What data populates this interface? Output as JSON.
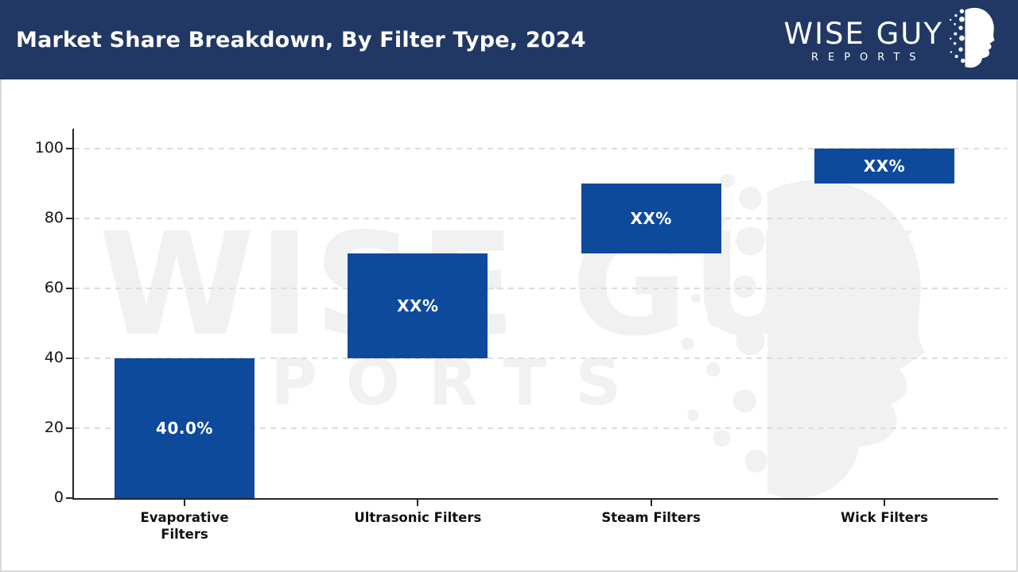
{
  "header": {
    "title": "Market Share Breakdown, By Filter Type, 2024",
    "bg_color": "#213864",
    "logo": {
      "line1": "WISE GUY",
      "line2": "REPORTS"
    }
  },
  "watermark": {
    "line1": "WISE GUY",
    "line2": "REPORTS"
  },
  "chart_data": {
    "type": "bar",
    "subtype": "waterfall",
    "title": "Market Share Breakdown, By Filter Type, 2024",
    "xlabel": "",
    "ylabel": "",
    "ylim": [
      0,
      100
    ],
    "yticks": [
      0,
      20,
      40,
      60,
      80,
      100
    ],
    "grid": "horizontal-dashed",
    "legend": "none",
    "bar_color": "#0d4a9c",
    "bar_label_color": "#ffffff",
    "categories": [
      "Evaporative Filters",
      "Ultrasonic Filters",
      "Steam Filters",
      "Wick Filters"
    ],
    "categories_display": [
      [
        "Evaporative",
        "Filters"
      ],
      [
        "Ultrasonic Filters"
      ],
      [
        "Steam Filters"
      ],
      [
        "Wick Filters"
      ]
    ],
    "bars": [
      {
        "category": "Evaporative Filters",
        "start": 0,
        "end": 40,
        "value": 40,
        "label": "40.0%"
      },
      {
        "category": "Ultrasonic Filters",
        "start": 40,
        "end": 70,
        "value": 30,
        "label": "XX%"
      },
      {
        "category": "Steam Filters",
        "start": 70,
        "end": 90,
        "value": 20,
        "label": "XX%"
      },
      {
        "category": "Wick Filters",
        "start": 90,
        "end": 100,
        "value": 10,
        "label": "XX%"
      }
    ]
  }
}
